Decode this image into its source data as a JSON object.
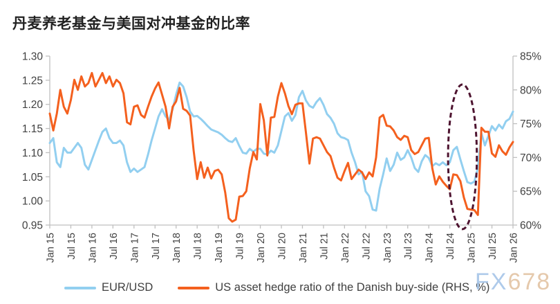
{
  "title": "丹麦养老基金与美国对冲基金的比率",
  "watermark": {
    "part1": "FX",
    "part2": "678"
  },
  "legend": [
    {
      "label": "EUR/USD",
      "color": "#92CFF0"
    },
    {
      "label": "US asset hedge ratio of the Danish buy-side (RHS, %)",
      "color": "#F4601E"
    }
  ],
  "chart_data": {
    "type": "line",
    "title": "丹麦养老基金与美国对冲基金的比率",
    "xlabel": "",
    "ylabel_left": "EUR/USD",
    "ylabel_right": "US asset hedge ratio (%)",
    "grid": false,
    "legend_position": "bottom",
    "x_tick_labels": [
      "Jan 15",
      "Jul 15",
      "Jan 16",
      "Jul 16",
      "Jan 17",
      "Jul 17",
      "Jan 18",
      "Jul 18",
      "Jan 19",
      "Jul 19",
      "Jan 20",
      "Jul 20",
      "Jan 21",
      "Jul 21",
      "Jan 22",
      "Jul 22",
      "Jan 23",
      "Jul 23",
      "Jan 24",
      "Jul 24",
      "Jan 25",
      "Jul 25",
      "Jan 26"
    ],
    "x_frequency": "monthly",
    "x_range": "Jan 2015 - Jan 2026",
    "left_axis": {
      "min": 0.95,
      "max": 1.3,
      "step": 0.05
    },
    "right_axis": {
      "min": 60,
      "max": 85,
      "step": 5
    },
    "series": [
      {
        "name": "EUR/USD",
        "axis": "left",
        "color": "#92CFF0",
        "data_name": "line-eurusd",
        "values": [
          1.12,
          1.13,
          1.08,
          1.07,
          1.11,
          1.1,
          1.1,
          1.11,
          1.12,
          1.11,
          1.075,
          1.065,
          1.085,
          1.105,
          1.125,
          1.143,
          1.15,
          1.13,
          1.12,
          1.12,
          1.125,
          1.115,
          1.08,
          1.06,
          1.067,
          1.06,
          1.065,
          1.07,
          1.096,
          1.125,
          1.15,
          1.175,
          1.19,
          1.175,
          1.168,
          1.19,
          1.22,
          1.245,
          1.237,
          1.215,
          1.185,
          1.175,
          1.176,
          1.17,
          1.163,
          1.155,
          1.148,
          1.145,
          1.142,
          1.137,
          1.13,
          1.124,
          1.122,
          1.13,
          1.114,
          1.1,
          1.098,
          1.108,
          1.102,
          1.108,
          1.108,
          1.098,
          1.096,
          1.104,
          1.1,
          1.115,
          1.145,
          1.175,
          1.182,
          1.166,
          1.178,
          1.215,
          1.228,
          1.208,
          1.197,
          1.193,
          1.205,
          1.213,
          1.199,
          1.18,
          1.172,
          1.16,
          1.14,
          1.132,
          1.13,
          1.126,
          1.1,
          1.08,
          1.055,
          1.06,
          1.02,
          1.01,
          0.982,
          0.98,
          1.025,
          1.055,
          1.088,
          1.062,
          1.075,
          1.1,
          1.085,
          1.09,
          1.105,
          1.09,
          1.068,
          1.06,
          1.082,
          1.095,
          1.089,
          1.072,
          1.078,
          1.074,
          1.08,
          1.074,
          1.08,
          1.105,
          1.112,
          1.086,
          1.062,
          1.039,
          1.036,
          1.04,
          1.068,
          1.14,
          1.115,
          1.135,
          1.155,
          1.146,
          1.158,
          1.15,
          1.165,
          1.17,
          1.185
        ]
      },
      {
        "name": "US asset hedge ratio of the Danish buy-side (RHS, %)",
        "axis": "right",
        "color": "#F4601E",
        "data_name": "line-hedge-ratio",
        "values": [
          76.5,
          74.0,
          76.5,
          80.0,
          77.5,
          76.5,
          78.5,
          81.5,
          80.0,
          82.0,
          80.5,
          81.0,
          82.5,
          80.5,
          81.5,
          82.5,
          81.0,
          82.0,
          80.5,
          81.5,
          81.0,
          79.5,
          75.2,
          74.9,
          77.5,
          77.7,
          76.3,
          75.9,
          77.5,
          79.0,
          80.2,
          81.1,
          79.3,
          77.5,
          74.3,
          77.5,
          78.3,
          80.3,
          77.2,
          76.9,
          76.2,
          71.0,
          66.8,
          69.3,
          67.0,
          68.5,
          66.9,
          68.0,
          68.2,
          67.5,
          64.8,
          61.0,
          60.5,
          60.8,
          64.2,
          64.3,
          65.0,
          68.4,
          70.8,
          69.7,
          77.9,
          75.5,
          70.3,
          75.9,
          76.0,
          79.0,
          81.0,
          79.5,
          77.6,
          76.4,
          77.8,
          78.0,
          78.0,
          73.7,
          69.1,
          72.8,
          73.0,
          72.8,
          71.8,
          70.8,
          70.2,
          68.5,
          67.0,
          66.6,
          68.0,
          69.2,
          66.8,
          67.5,
          68.2,
          67.8,
          66.8,
          67.8,
          67.2,
          70.0,
          75.9,
          76.3,
          74.7,
          74.6,
          74.0,
          73.0,
          72.6,
          73.2,
          73.0,
          71.1,
          70.5,
          70.8,
          71.8,
          72.8,
          72.9,
          68.4,
          66.0,
          67.2,
          66.4,
          65.8,
          65.3,
          67.5,
          67.4,
          66.5,
          64.1,
          62.4,
          62.3,
          62.2,
          61.5,
          74.4,
          73.8,
          73.8,
          70.6,
          70.1,
          71.8,
          70.9,
          70.4,
          71.5,
          72.3
        ]
      }
    ],
    "annotation": {
      "type": "dashed-ellipse",
      "description": "highlights the late-2024/early-2025 hedge-ratio plunge and rebound",
      "color": "#4E1430",
      "center_month": 117.6,
      "rx_months": 4.1,
      "center_value_right": 70.1,
      "ry_right_units": 10.7
    }
  }
}
